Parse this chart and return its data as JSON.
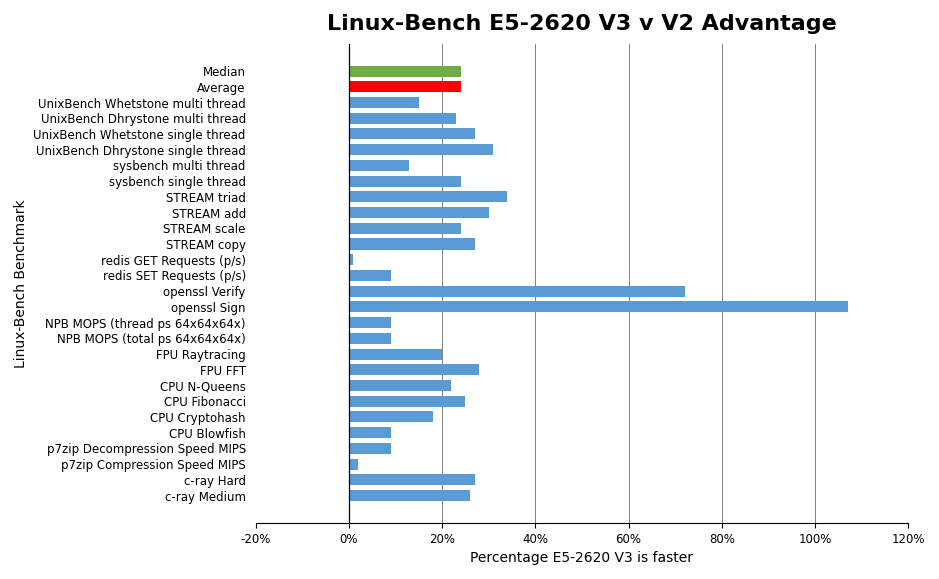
{
  "title": "Linux-Bench E5-2620 V3 v V2 Advantage",
  "xlabel": "Percentage E5-2620 V3 is faster",
  "ylabel": "Linux-Bench Benchmark",
  "xlim": [
    -0.2,
    1.2
  ],
  "xtick_values": [
    -0.2,
    0.0,
    0.2,
    0.4,
    0.6,
    0.8,
    1.0,
    1.2
  ],
  "xtick_labels": [
    "-20%",
    "0%",
    "20%",
    "40%",
    "60%",
    "80%",
    "100%",
    "120%"
  ],
  "categories": [
    "Median",
    "Average",
    "UnixBench Whetstone multi thread",
    "UnixBench Dhrystone multi thread",
    "UnixBench Whetstone single thread",
    "UnixBench Dhrystone single thread",
    "sysbench multi thread",
    "sysbench single thread",
    "STREAM triad",
    "STREAM add",
    "STREAM scale",
    "STREAM copy",
    "redis GET Requests (p/s)",
    "redis SET Requests (p/s)",
    "openssl Verify",
    "openssl Sign",
    "NPB MOPS (thread ps 64x64x64x)",
    "NPB MOPS (total ps 64x64x64x)",
    "FPU Raytracing",
    "FPU FFT",
    "CPU N-Queens",
    "CPU Fibonacci",
    "CPU Cryptohash",
    "CPU Blowfish",
    "p7zip Decompression Speed MIPS",
    "p7zip Compression Speed MIPS",
    "c-ray Hard",
    "c-ray Medium"
  ],
  "values": [
    0.24,
    0.24,
    0.15,
    0.23,
    0.27,
    0.31,
    0.13,
    0.24,
    0.34,
    0.3,
    0.24,
    0.27,
    0.01,
    0.09,
    0.72,
    1.07,
    0.09,
    0.09,
    0.2,
    0.28,
    0.22,
    0.25,
    0.18,
    0.09,
    0.09,
    0.02,
    0.27,
    0.26
  ],
  "bar_colors": [
    "#70AD47",
    "#FF0000",
    "#5B9BD5",
    "#5B9BD5",
    "#5B9BD5",
    "#5B9BD5",
    "#5B9BD5",
    "#5B9BD5",
    "#5B9BD5",
    "#5B9BD5",
    "#5B9BD5",
    "#5B9BD5",
    "#5B9BD5",
    "#5B9BD5",
    "#5B9BD5",
    "#5B9BD5",
    "#5B9BD5",
    "#5B9BD5",
    "#5B9BD5",
    "#5B9BD5",
    "#5B9BD5",
    "#5B9BD5",
    "#5B9BD5",
    "#5B9BD5",
    "#5B9BD5",
    "#5B9BD5",
    "#5B9BD5",
    "#5B9BD5"
  ],
  "vline_x": 0.0,
  "grid_x_values": [
    0.2,
    0.4,
    0.6,
    0.8,
    1.0,
    1.2
  ],
  "figsize": [
    9.39,
    5.79
  ],
  "dpi": 100,
  "title_fontsize": 16,
  "axis_label_fontsize": 10,
  "tick_fontsize": 8.5,
  "bar_height": 0.7,
  "background_color": "#FFFFFF"
}
